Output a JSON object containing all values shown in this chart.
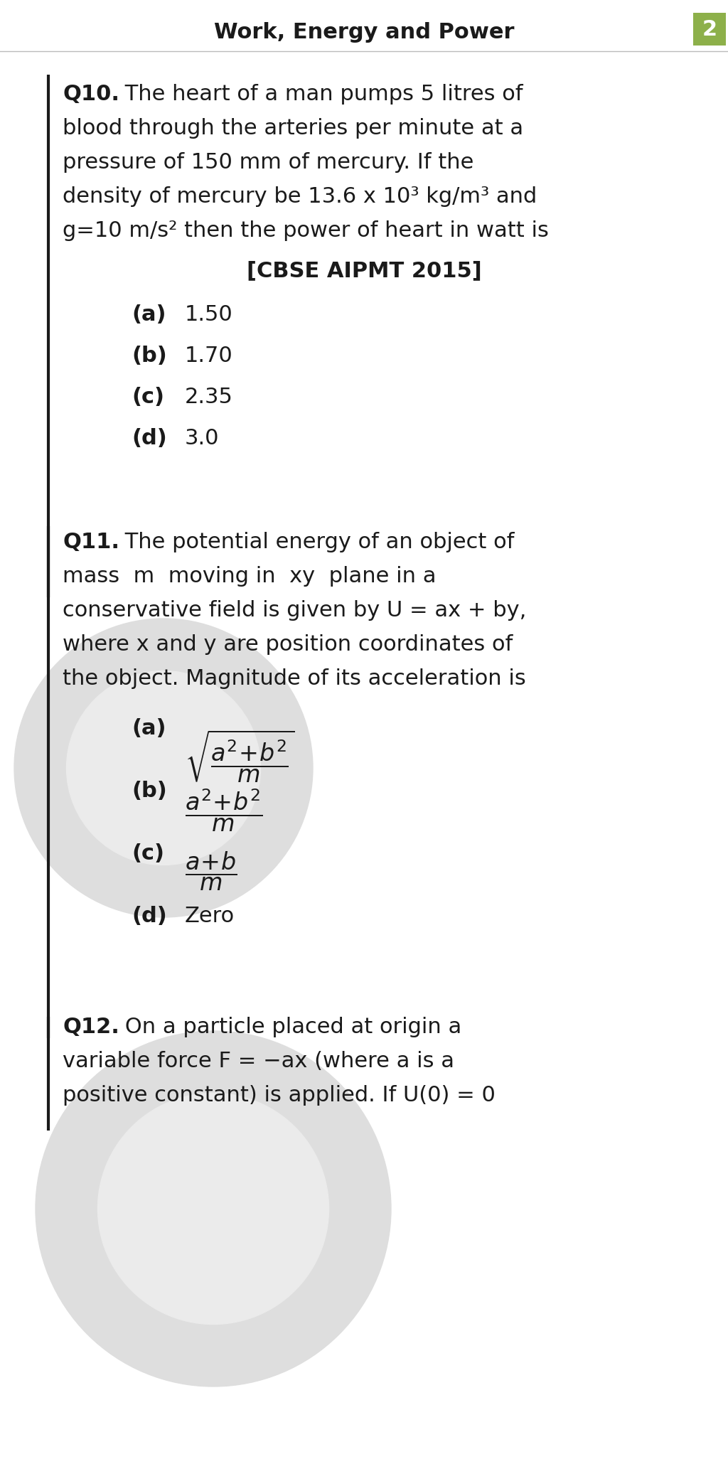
{
  "bg_color": "#ffffff",
  "header_text": "Work, Energy and Power",
  "header_badge": "2",
  "header_badge_color": "#8db04a",
  "q10_label": "Q10.",
  "q10_body": " The heart of a man pumps 5 litres of",
  "q10_lines": [
    "blood through the arteries per minute at a",
    "pressure of 150 mm of mercury. If the",
    "density of mercury be 13.6 x 10³ kg/m³ and",
    "g=10 m/s² then the power of heart in watt is"
  ],
  "q10_citation": "[CBSE AIPMT 2015]",
  "q10_options": [
    [
      "(a)",
      "1.50"
    ],
    [
      "(b)",
      "1.70"
    ],
    [
      "(c)",
      "2.35"
    ],
    [
      "(d)",
      "3.0"
    ]
  ],
  "q11_label": "Q11.",
  "q11_body": " The potential energy of an object of",
  "q11_lines": [
    "mass  m  moving in  xy  plane in a",
    "conservative field is given by U = ax + by,",
    "where x and y are position coordinates of",
    "the object. Magnitude of its acceleration is"
  ],
  "q11_options_labels": [
    "(a)",
    "(b)",
    "(c)",
    "(d)"
  ],
  "q11_option_d": "Zero",
  "q12_label": "Q12.",
  "q12_body": " On a particle placed at origin a",
  "q12_lines": [
    "variable force F = −ax (where a is a",
    "positive constant) is applied. If U(0) = 0"
  ],
  "watermark_color": "#dedede",
  "bar_color": "#1a1a1a",
  "text_color": "#1a1a1a"
}
